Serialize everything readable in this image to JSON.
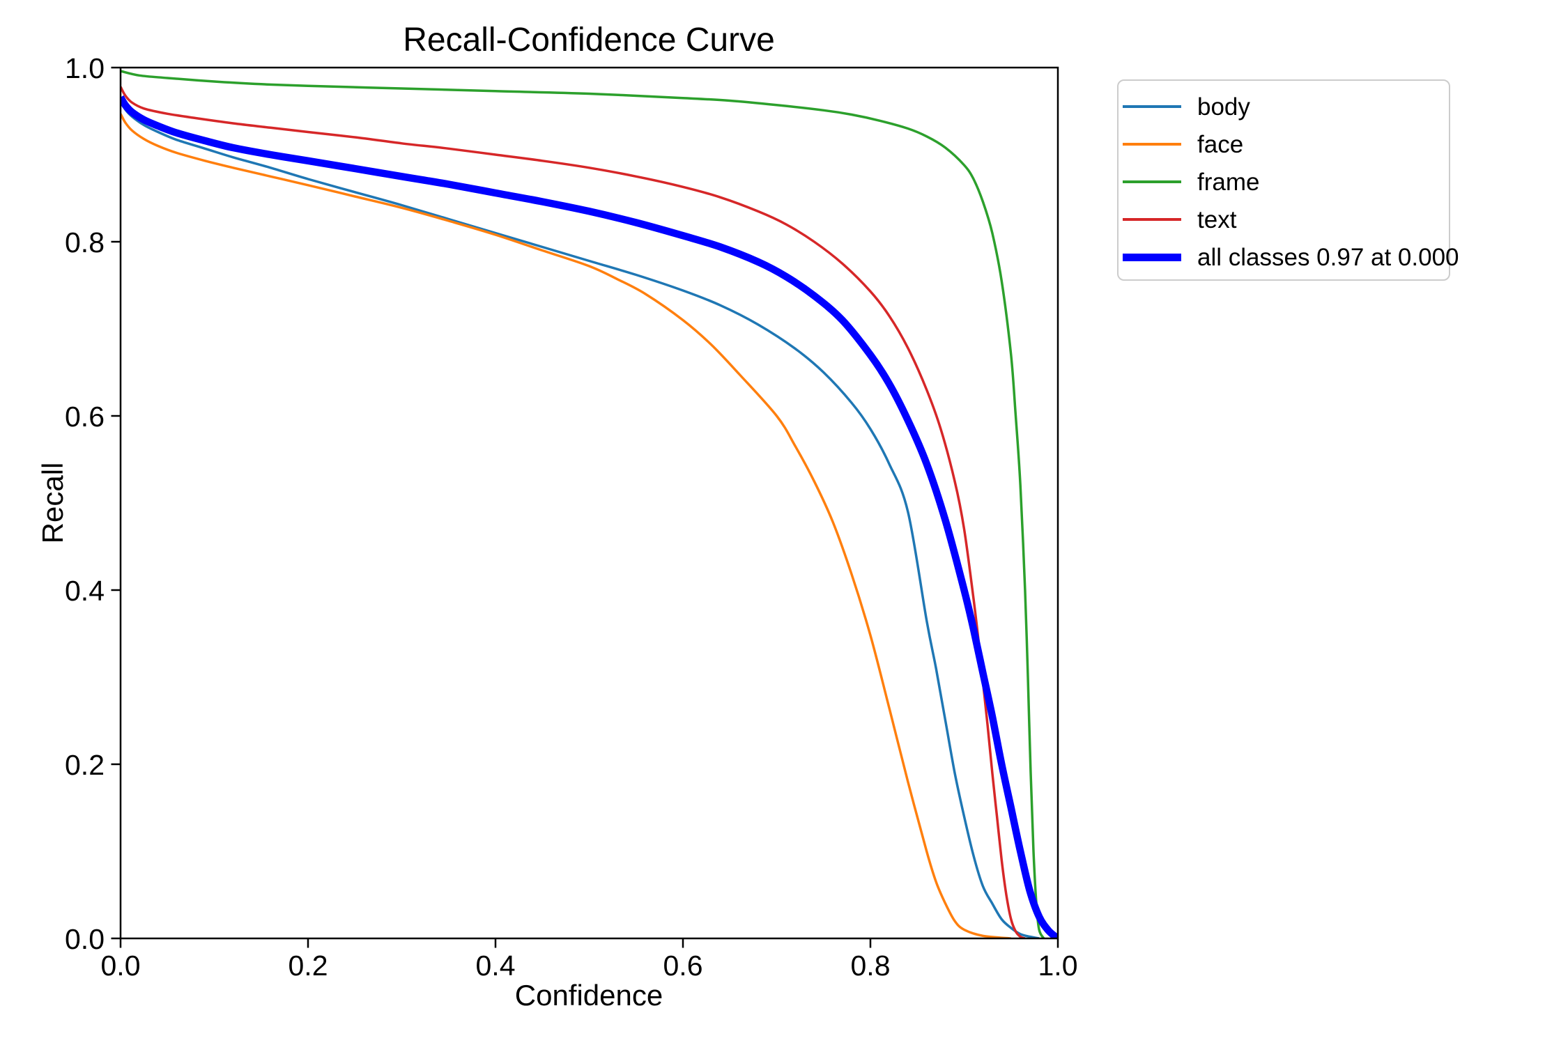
{
  "chart_data": {
    "type": "line",
    "title": "Recall-Confidence Curve",
    "xlabel": "Confidence",
    "ylabel": "Recall",
    "xlim": [
      0.0,
      1.0
    ],
    "ylim": [
      0.0,
      1.0
    ],
    "grid": false,
    "legend_position": "outside-upper-right",
    "x_ticks": [
      {
        "value": 0.0,
        "label": "0.0"
      },
      {
        "value": 0.2,
        "label": "0.2"
      },
      {
        "value": 0.4,
        "label": "0.4"
      },
      {
        "value": 0.6,
        "label": "0.6"
      },
      {
        "value": 0.8,
        "label": "0.8"
      },
      {
        "value": 1.0,
        "label": "1.0"
      }
    ],
    "y_ticks": [
      {
        "value": 0.0,
        "label": "0.0"
      },
      {
        "value": 0.2,
        "label": "0.2"
      },
      {
        "value": 0.4,
        "label": "0.4"
      },
      {
        "value": 0.6,
        "label": "0.6"
      },
      {
        "value": 0.8,
        "label": "0.8"
      },
      {
        "value": 1.0,
        "label": "1.0"
      }
    ],
    "axis_color": "#000000",
    "series": [
      {
        "name": "body",
        "legend_label": "body",
        "color": "#1f77b4",
        "line_width": 3.5,
        "legend_line_height": 4,
        "points": [
          [
            0,
            0.962
          ],
          [
            0.005,
            0.952
          ],
          [
            0.012,
            0.944
          ],
          [
            0.025,
            0.934
          ],
          [
            0.04,
            0.926
          ],
          [
            0.06,
            0.917
          ],
          [
            0.09,
            0.907
          ],
          [
            0.12,
            0.897
          ],
          [
            0.16,
            0.885
          ],
          [
            0.2,
            0.872
          ],
          [
            0.25,
            0.857
          ],
          [
            0.3,
            0.842
          ],
          [
            0.35,
            0.826
          ],
          [
            0.4,
            0.81
          ],
          [
            0.45,
            0.794
          ],
          [
            0.5,
            0.778
          ],
          [
            0.55,
            0.762
          ],
          [
            0.6,
            0.744
          ],
          [
            0.64,
            0.727
          ],
          [
            0.68,
            0.705
          ],
          [
            0.72,
            0.677
          ],
          [
            0.75,
            0.65
          ],
          [
            0.78,
            0.615
          ],
          [
            0.8,
            0.585
          ],
          [
            0.82,
            0.545
          ],
          [
            0.84,
            0.49
          ],
          [
            0.86,
            0.365
          ],
          [
            0.87,
            0.31
          ],
          [
            0.88,
            0.25
          ],
          [
            0.89,
            0.19
          ],
          [
            0.9,
            0.14
          ],
          [
            0.91,
            0.095
          ],
          [
            0.92,
            0.06
          ],
          [
            0.93,
            0.04
          ],
          [
            0.94,
            0.022
          ],
          [
            0.95,
            0.012
          ],
          [
            0.96,
            0.005
          ],
          [
            0.97,
            0.002
          ],
          [
            0.98,
            0.0
          ]
        ]
      },
      {
        "name": "face",
        "legend_label": "face",
        "color": "#ff7f0e",
        "line_width": 3.5,
        "legend_line_height": 4,
        "points": [
          [
            0,
            0.947
          ],
          [
            0.005,
            0.937
          ],
          [
            0.012,
            0.928
          ],
          [
            0.025,
            0.918
          ],
          [
            0.04,
            0.91
          ],
          [
            0.06,
            0.902
          ],
          [
            0.09,
            0.893
          ],
          [
            0.12,
            0.885
          ],
          [
            0.16,
            0.875
          ],
          [
            0.2,
            0.865
          ],
          [
            0.25,
            0.852
          ],
          [
            0.3,
            0.839
          ],
          [
            0.35,
            0.824
          ],
          [
            0.4,
            0.808
          ],
          [
            0.45,
            0.79
          ],
          [
            0.5,
            0.772
          ],
          [
            0.53,
            0.757
          ],
          [
            0.56,
            0.74
          ],
          [
            0.6,
            0.71
          ],
          [
            0.63,
            0.682
          ],
          [
            0.66,
            0.648
          ],
          [
            0.7,
            0.6
          ],
          [
            0.72,
            0.565
          ],
          [
            0.74,
            0.525
          ],
          [
            0.76,
            0.478
          ],
          [
            0.78,
            0.418
          ],
          [
            0.8,
            0.348
          ],
          [
            0.82,
            0.265
          ],
          [
            0.84,
            0.18
          ],
          [
            0.86,
            0.1
          ],
          [
            0.87,
            0.065
          ],
          [
            0.88,
            0.04
          ],
          [
            0.89,
            0.02
          ],
          [
            0.9,
            0.01
          ],
          [
            0.92,
            0.003
          ],
          [
            0.95,
            0.0
          ]
        ]
      },
      {
        "name": "frame",
        "legend_label": "frame",
        "color": "#2ca02c",
        "line_width": 3.5,
        "legend_line_height": 4,
        "points": [
          [
            0,
            0.996
          ],
          [
            0.02,
            0.991
          ],
          [
            0.05,
            0.988
          ],
          [
            0.1,
            0.984
          ],
          [
            0.15,
            0.981
          ],
          [
            0.2,
            0.979
          ],
          [
            0.3,
            0.976
          ],
          [
            0.4,
            0.973
          ],
          [
            0.5,
            0.97
          ],
          [
            0.6,
            0.965
          ],
          [
            0.65,
            0.962
          ],
          [
            0.7,
            0.957
          ],
          [
            0.75,
            0.951
          ],
          [
            0.78,
            0.946
          ],
          [
            0.81,
            0.939
          ],
          [
            0.84,
            0.93
          ],
          [
            0.86,
            0.921
          ],
          [
            0.88,
            0.908
          ],
          [
            0.9,
            0.888
          ],
          [
            0.91,
            0.872
          ],
          [
            0.92,
            0.846
          ],
          [
            0.93,
            0.81
          ],
          [
            0.94,
            0.755
          ],
          [
            0.95,
            0.67
          ],
          [
            0.955,
            0.6
          ],
          [
            0.96,
            0.52
          ],
          [
            0.965,
            0.4
          ],
          [
            0.968,
            0.3
          ],
          [
            0.971,
            0.19
          ],
          [
            0.974,
            0.1
          ],
          [
            0.977,
            0.04
          ],
          [
            0.98,
            0.01
          ],
          [
            0.985,
            0.0
          ]
        ]
      },
      {
        "name": "text",
        "legend_label": "text",
        "color": "#d62728",
        "line_width": 3.5,
        "legend_line_height": 4,
        "points": [
          [
            0,
            0.978
          ],
          [
            0.005,
            0.968
          ],
          [
            0.012,
            0.96
          ],
          [
            0.025,
            0.953
          ],
          [
            0.05,
            0.947
          ],
          [
            0.08,
            0.942
          ],
          [
            0.12,
            0.936
          ],
          [
            0.16,
            0.931
          ],
          [
            0.2,
            0.926
          ],
          [
            0.25,
            0.92
          ],
          [
            0.3,
            0.913
          ],
          [
            0.35,
            0.907
          ],
          [
            0.4,
            0.9
          ],
          [
            0.45,
            0.893
          ],
          [
            0.5,
            0.885
          ],
          [
            0.55,
            0.875
          ],
          [
            0.6,
            0.863
          ],
          [
            0.64,
            0.851
          ],
          [
            0.68,
            0.835
          ],
          [
            0.71,
            0.82
          ],
          [
            0.74,
            0.8
          ],
          [
            0.77,
            0.775
          ],
          [
            0.8,
            0.743
          ],
          [
            0.82,
            0.715
          ],
          [
            0.84,
            0.678
          ],
          [
            0.86,
            0.63
          ],
          [
            0.875,
            0.585
          ],
          [
            0.89,
            0.525
          ],
          [
            0.9,
            0.47
          ],
          [
            0.91,
            0.39
          ],
          [
            0.915,
            0.345
          ],
          [
            0.92,
            0.295
          ],
          [
            0.925,
            0.245
          ],
          [
            0.93,
            0.19
          ],
          [
            0.935,
            0.14
          ],
          [
            0.94,
            0.09
          ],
          [
            0.945,
            0.05
          ],
          [
            0.95,
            0.022
          ],
          [
            0.955,
            0.008
          ],
          [
            0.96,
            0.002
          ],
          [
            0.965,
            0.0
          ]
        ]
      },
      {
        "name": "all classes",
        "legend_label": "all classes 0.97 at 0.000",
        "color": "#0000ff",
        "line_width": 10.5,
        "legend_line_height": 11,
        "points": [
          [
            0,
            0.966
          ],
          [
            0.005,
            0.957
          ],
          [
            0.012,
            0.949
          ],
          [
            0.025,
            0.94
          ],
          [
            0.04,
            0.933
          ],
          [
            0.06,
            0.925
          ],
          [
            0.09,
            0.916
          ],
          [
            0.12,
            0.908
          ],
          [
            0.16,
            0.9
          ],
          [
            0.2,
            0.893
          ],
          [
            0.25,
            0.884
          ],
          [
            0.3,
            0.875
          ],
          [
            0.35,
            0.866
          ],
          [
            0.4,
            0.856
          ],
          [
            0.45,
            0.846
          ],
          [
            0.5,
            0.835
          ],
          [
            0.55,
            0.822
          ],
          [
            0.6,
            0.807
          ],
          [
            0.64,
            0.794
          ],
          [
            0.68,
            0.777
          ],
          [
            0.71,
            0.76
          ],
          [
            0.74,
            0.738
          ],
          [
            0.77,
            0.71
          ],
          [
            0.8,
            0.67
          ],
          [
            0.82,
            0.637
          ],
          [
            0.84,
            0.595
          ],
          [
            0.86,
            0.545
          ],
          [
            0.88,
            0.48
          ],
          [
            0.9,
            0.4
          ],
          [
            0.91,
            0.355
          ],
          [
            0.92,
            0.305
          ],
          [
            0.93,
            0.255
          ],
          [
            0.94,
            0.2
          ],
          [
            0.95,
            0.15
          ],
          [
            0.96,
            0.1
          ],
          [
            0.97,
            0.055
          ],
          [
            0.98,
            0.025
          ],
          [
            0.99,
            0.009
          ],
          [
            1.0,
            0.0
          ]
        ]
      }
    ],
    "summary": {
      "best_recall": "0.97",
      "at_confidence": "0.000"
    }
  }
}
